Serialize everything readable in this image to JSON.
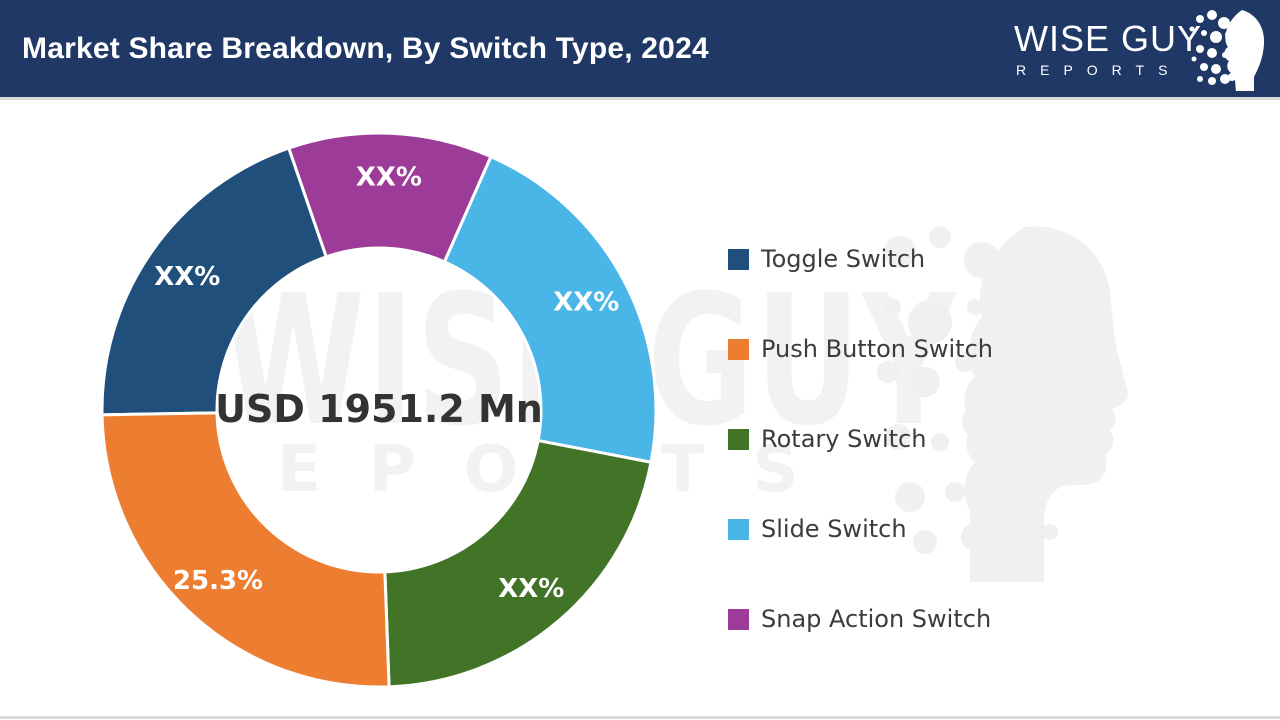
{
  "header": {
    "title": "Market Share Breakdown, By Switch Type, 2024",
    "logo": {
      "name": "WISE GUY",
      "tagline": "REPORTS"
    }
  },
  "watermark": {
    "line1": "WISE GUY",
    "line2": "REPORTS"
  },
  "chart_data": {
    "type": "pie",
    "subtype": "donut",
    "title": "Market Share Breakdown, By Switch Type, 2024",
    "center_label": "USD 1951.2 Mn",
    "legend_position": "right",
    "hole_ratio": 0.585,
    "start_angle_deg": -91,
    "draw_order": [
      0,
      4,
      3,
      2,
      1
    ],
    "segments": [
      {
        "label": "Toggle Switch",
        "display_value": "XX%",
        "arc_pct_est": 20.0,
        "color": "#1F4F7A"
      },
      {
        "label": "Push Button Switch",
        "display_value": "25.3%",
        "arc_pct_est": 25.3,
        "color": "#ED7D31"
      },
      {
        "label": "Rotary Switch",
        "display_value": "XX%",
        "arc_pct_est": 21.4,
        "color": "#427427"
      },
      {
        "label": "Slide Switch",
        "display_value": "XX%",
        "arc_pct_est": 21.4,
        "color": "#4AB6E8"
      },
      {
        "label": "Snap Action Switch",
        "display_value": "XX%",
        "arc_pct_est": 11.9,
        "color": "#9C3C98"
      }
    ]
  }
}
